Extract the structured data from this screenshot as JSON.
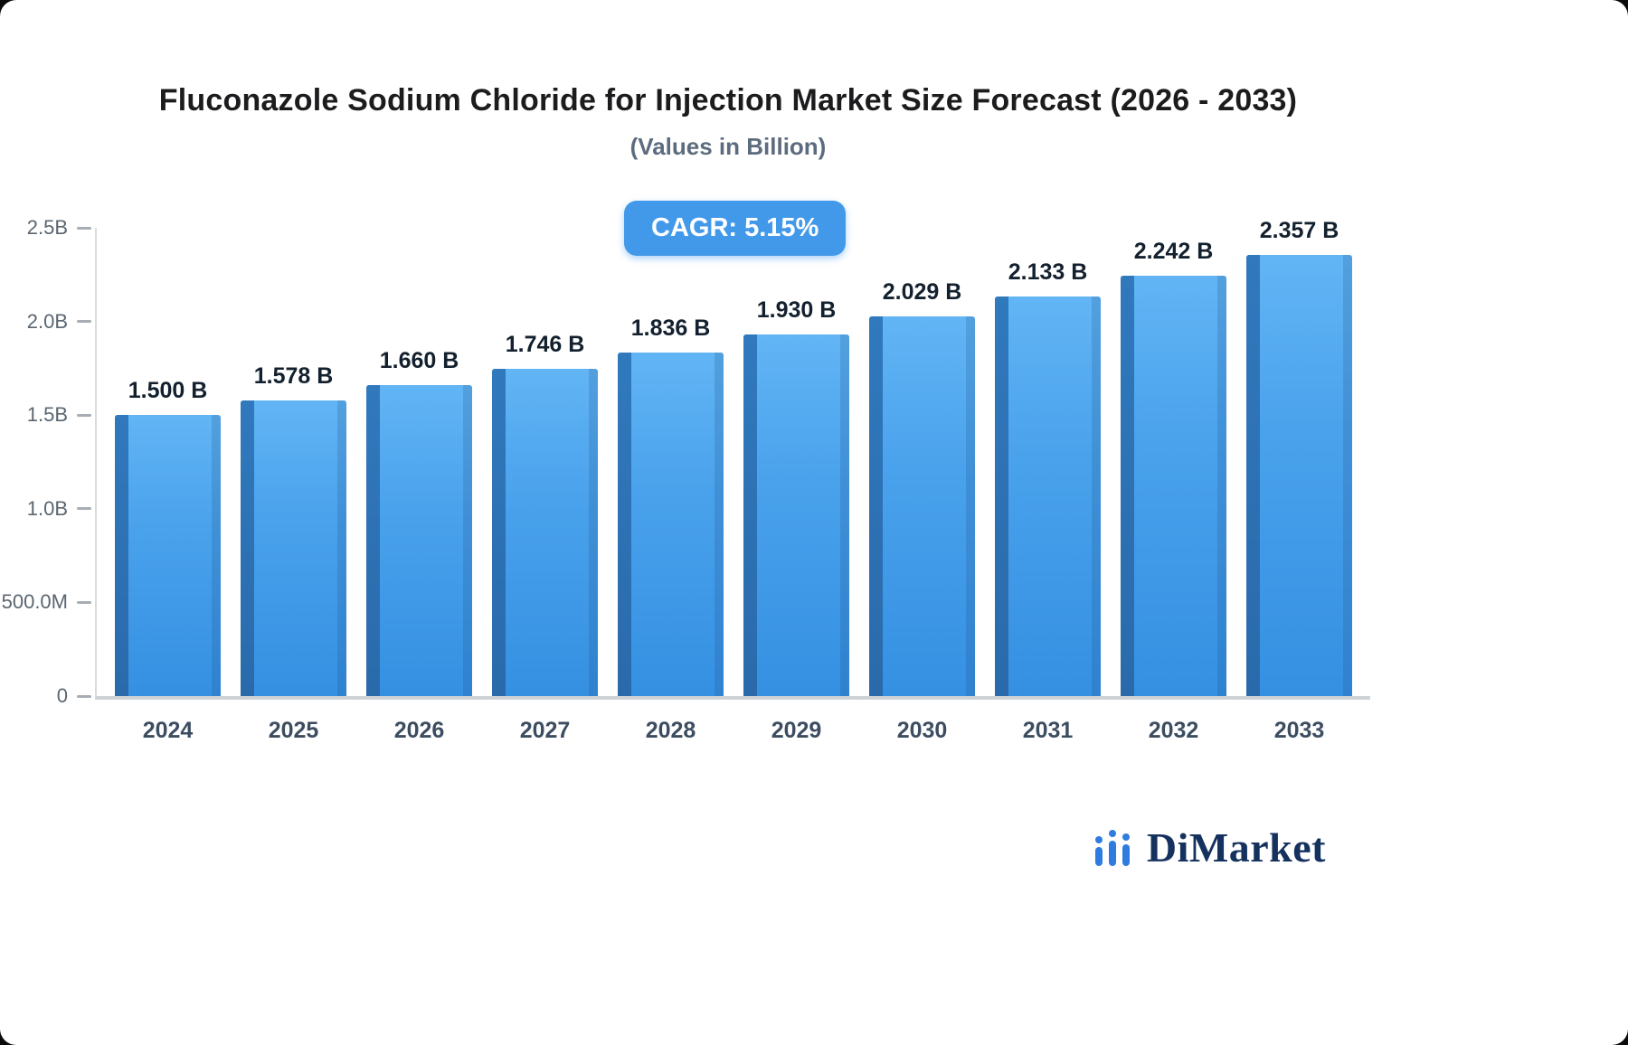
{
  "header": {
    "title": "Fluconazole Sodium Chloride for Injection Market Size Forecast (2026 - 2033)",
    "subtitle": "(Values in Billion)"
  },
  "badge": {
    "label": "CAGR: 5.15%",
    "bg_color": "#4299ea"
  },
  "chart_data": {
    "type": "bar",
    "title": "Fluconazole Sodium Chloride for Injection Market Size Forecast (2026 - 2033)",
    "subtitle": "(Values in Billion)",
    "categories": [
      "2024",
      "2025",
      "2026",
      "2027",
      "2028",
      "2029",
      "2030",
      "2031",
      "2032",
      "2033"
    ],
    "values": [
      1.5,
      1.578,
      1.66,
      1.746,
      1.836,
      1.93,
      2.029,
      2.133,
      2.242,
      2.357
    ],
    "value_labels": [
      "1.500 B",
      "1.578 B",
      "1.660 B",
      "1.746 B",
      "1.836 B",
      "1.930 B",
      "2.029 B",
      "2.133 B",
      "2.242 B",
      "2.357 B"
    ],
    "xlabel": "",
    "ylabel": "",
    "ylim": [
      0,
      2.5
    ],
    "y_ticks": [
      {
        "label": "2.5B",
        "value": 2.5
      },
      {
        "label": "2.0B",
        "value": 2.0
      },
      {
        "label": "1.5B",
        "value": 1.5
      },
      {
        "label": "1.0B",
        "value": 1.0
      },
      {
        "label": "500.0M",
        "value": 0.5
      },
      {
        "label": "0",
        "value": 0
      }
    ],
    "grid": false,
    "legend": false,
    "cagr": "5.15%",
    "bar_colors": {
      "face_top": "#62b5f5",
      "face_bottom": "#3590e2",
      "side_dark": "#2a6aab"
    }
  },
  "footer_logo": {
    "name": "DiMarket",
    "icon": "bar-chart-logo-icon",
    "icon_color": "#2e7ce0",
    "text_color": "#15325f"
  }
}
